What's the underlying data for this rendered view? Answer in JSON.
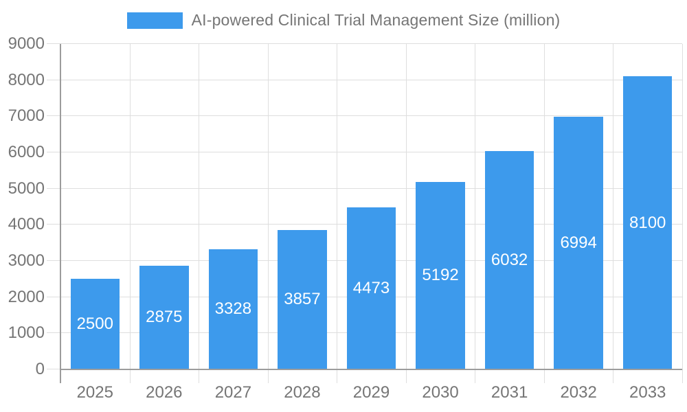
{
  "legend": {
    "label": "AI-powered Clinical Trial Management Size (million)"
  },
  "colors": {
    "bar": "#3D9AEC",
    "axis_text": "#757575",
    "grid": "#dedede",
    "axis_line": "#9c9c9c",
    "value_label": "#ffffff"
  },
  "chart_data": {
    "type": "bar",
    "title": "AI-powered Clinical Trial Management Size (million)",
    "categories": [
      "2025",
      "2026",
      "2027",
      "2028",
      "2029",
      "2030",
      "2031",
      "2032",
      "2033"
    ],
    "values": [
      2500,
      2875,
      3328,
      3857,
      4473,
      5192,
      6032,
      6994,
      8100
    ],
    "series": [
      {
        "name": "AI-powered Clinical Trial Management Size (million)",
        "values": [
          2500,
          2875,
          3328,
          3857,
          4473,
          5192,
          6032,
          6994,
          8100
        ]
      }
    ],
    "xlabel": "",
    "ylabel": "",
    "ylim": [
      0,
      9000
    ],
    "ytick_step": 1000,
    "yticks": [
      0,
      1000,
      2000,
      3000,
      4000,
      5000,
      6000,
      7000,
      8000,
      9000
    ],
    "grid": true,
    "legend_position": "top-center",
    "value_labels": "inside-center"
  }
}
